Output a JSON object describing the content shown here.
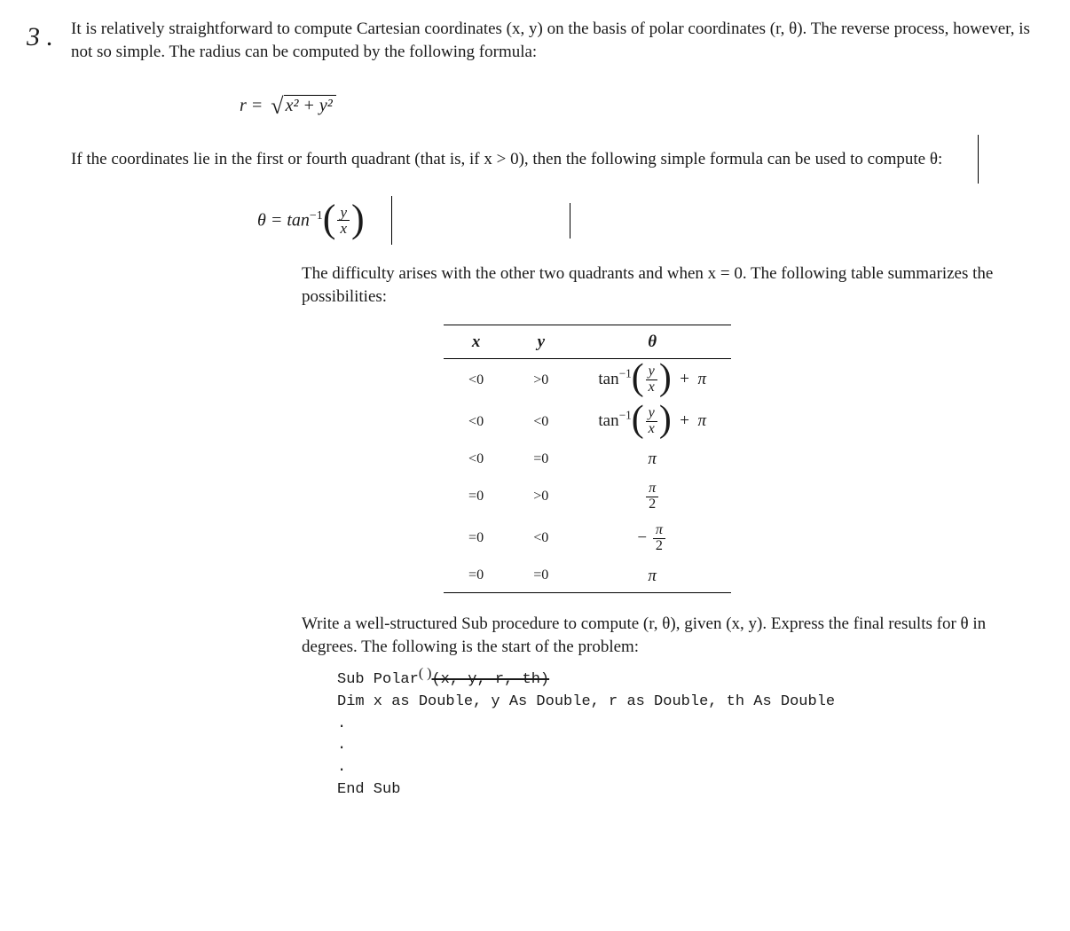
{
  "question_number": "3 .",
  "p1": "It is relatively straightforward to compute Cartesian coordinates (x, y) on the basis of polar coordinates (r, θ). The reverse process, however, is not so simple. The radius can be computed by the following formula:",
  "formula_r_lhs": "r =",
  "formula_r_rad": "x²  +  y²",
  "p2": "If the coordinates lie in the first or fourth quadrant (that is, if x > 0), then the following simple formula can be used to compute θ:",
  "formula_theta_lhs": "θ  =  tan",
  "formula_theta_sup": "−1",
  "frac_y": "y",
  "frac_x": "x",
  "p3": "The difficulty arises with the other two quadrants and when x = 0. The following table summarizes the possibilities:",
  "table": {
    "headers": [
      "x",
      "y",
      "θ"
    ],
    "rows": [
      {
        "x": "<0",
        "y": ">0",
        "theta": "atan+pi"
      },
      {
        "x": "<0",
        "y": "<0",
        "theta": "atan+pi"
      },
      {
        "x": "<0",
        "y": "=0",
        "theta": "pi"
      },
      {
        "x": "=0",
        "y": ">0",
        "theta": "pi/2"
      },
      {
        "x": "=0",
        "y": "<0",
        "theta": "-pi/2"
      },
      {
        "x": "=0",
        "y": "=0",
        "theta": "pi"
      }
    ]
  },
  "p4a": "Write a well-structured Sub procedure to compute (r, θ), given (x, y). Express the final results for θ in degrees. The following is the start of the problem:",
  "code": {
    "l1a": "Sub Polar",
    "l1_strike": "(x, y, r, th)",
    "l1_hand": "( )",
    "l2": "Dim x as Double, y As Double, r as Double, th As Double",
    "dot": ".",
    "lend": "End Sub"
  }
}
